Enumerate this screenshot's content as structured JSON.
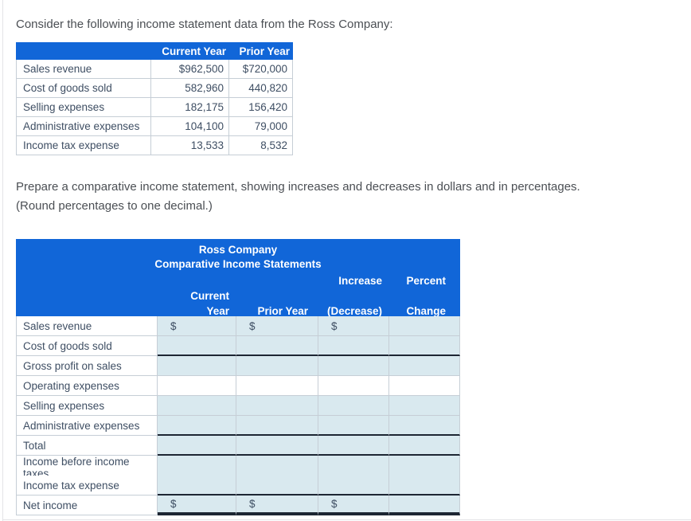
{
  "colors": {
    "header_blue": "#1166d8",
    "input_cell_blue": "#d9e9ef",
    "grid_border": "#c6ced6",
    "dark_rule": "#1d2633",
    "label_text": "#3e4e63",
    "body_text": "#4b4f54"
  },
  "intro": "Consider the following income statement data from the Ross Company:",
  "instructions": {
    "line1": "Prepare a comparative income statement, showing increases and decreases in dollars and in percentages.",
    "line2": "(Round percentages to one decimal.)"
  },
  "source_table": {
    "col_headers": {
      "current_year": "Current Year",
      "prior_year": "Prior Year"
    },
    "rows": [
      {
        "label": "Sales revenue",
        "current_year": "$962,500",
        "prior_year": "$720,000"
      },
      {
        "label": "Cost of goods sold",
        "current_year": "582,960",
        "prior_year": "440,820"
      },
      {
        "label": "Selling expenses",
        "current_year": "182,175",
        "prior_year": "156,420"
      },
      {
        "label": "Administrative expenses",
        "current_year": "104,100",
        "prior_year": "79,000"
      },
      {
        "label": "Income tax expense",
        "current_year": "13,533",
        "prior_year": "8,532"
      }
    ]
  },
  "statement_table": {
    "title": "Ross Company",
    "subtitle": "Comparative Income Statements",
    "col_headers": {
      "current_top": "Current",
      "current_bottom": "Year",
      "prior": "Prior Year",
      "increase_top": "Increase",
      "increase_bottom": "(Decrease)",
      "percent_top": "Percent",
      "percent_bottom": "Change"
    },
    "dollar_symbol": "$",
    "rows": [
      {
        "label": "Sales revenue",
        "inputs": true,
        "dollar": true,
        "rule": "none"
      },
      {
        "label": "Cost of goods sold",
        "inputs": true,
        "dollar": false,
        "rule": "single"
      },
      {
        "label": "Gross profit on sales",
        "inputs": true,
        "dollar": false,
        "rule": "none"
      },
      {
        "label": "Operating expenses",
        "inputs": false,
        "dollar": false,
        "rule": "none"
      },
      {
        "label": "Selling expenses",
        "inputs": true,
        "dollar": false,
        "rule": "none"
      },
      {
        "label": "Administrative expenses",
        "inputs": true,
        "dollar": false,
        "rule": "single"
      },
      {
        "label": "Total",
        "inputs": true,
        "dollar": false,
        "rule": "single"
      },
      {
        "label": "Income before income taxes",
        "inputs": true,
        "dollar": false,
        "rule": "none"
      },
      {
        "label": "Income tax expense",
        "inputs": true,
        "dollar": false,
        "rule": "single"
      },
      {
        "label": "Net income",
        "inputs": true,
        "dollar": true,
        "rule": "thick"
      }
    ]
  }
}
